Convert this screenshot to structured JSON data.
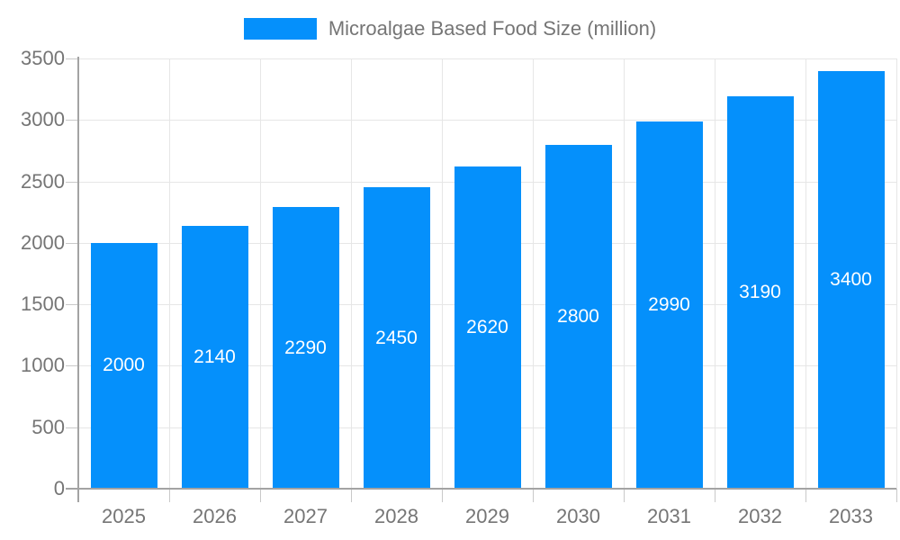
{
  "legend": {
    "label": "Microalgae Based Food Size (million)"
  },
  "colors": {
    "bar": "#0590fb",
    "axis_text": "#757575",
    "grid": "#e6e6e6",
    "axis_line": "#a3a3a3",
    "bar_label": "#ffffff"
  },
  "chart_data": {
    "type": "bar",
    "title": "",
    "legend": "Microalgae Based Food Size (million)",
    "legend_position": "top",
    "categories": [
      "2025",
      "2026",
      "2027",
      "2028",
      "2029",
      "2030",
      "2031",
      "2032",
      "2033"
    ],
    "values": [
      2000,
      2140,
      2290,
      2450,
      2620,
      2800,
      2990,
      3190,
      3400
    ],
    "xlabel": "",
    "ylabel": "",
    "ylim": [
      0,
      3500
    ],
    "ytick_step": 500,
    "yticks": [
      0,
      500,
      1000,
      1500,
      2000,
      2500,
      3000,
      3500
    ],
    "grid": true
  }
}
